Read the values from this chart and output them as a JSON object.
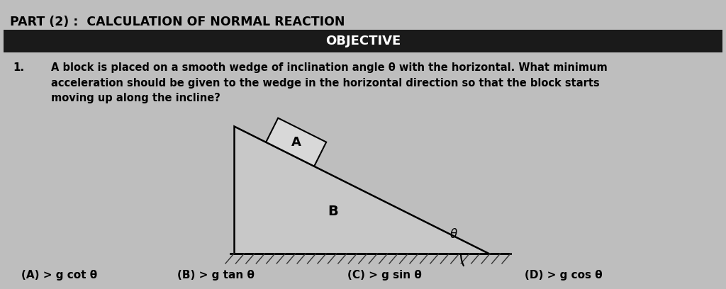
{
  "title": "PART (2) :  CALCULATION OF NORMAL REACTION",
  "objective_label": "OBJECTIVE",
  "question_number": "1.",
  "question_text": "A block is placed on a smooth wedge of inclination angle θ with the horizontal. What minimum\nacceleration should be given to the wedge in the horizontal direction so that the block starts\nmoving up along the incline?",
  "options": [
    "(A) > g cot θ",
    "(B) > g tan θ",
    "(C) > g sin θ",
    "(D) > g cos θ"
  ],
  "bg_color": "#bebebe",
  "header_bg": "#1a1a1a",
  "header_text_color": "#ffffff",
  "title_color": "#000000",
  "wedge_fill": "#c8c8c8",
  "wedge_edge": "#000000",
  "block_fill": "#d8d8d8",
  "block_edge": "#000000",
  "figsize": [
    10.24,
    4.08
  ],
  "dpi": 100,
  "label_A": "A",
  "label_B": "B",
  "label_theta": "θ"
}
